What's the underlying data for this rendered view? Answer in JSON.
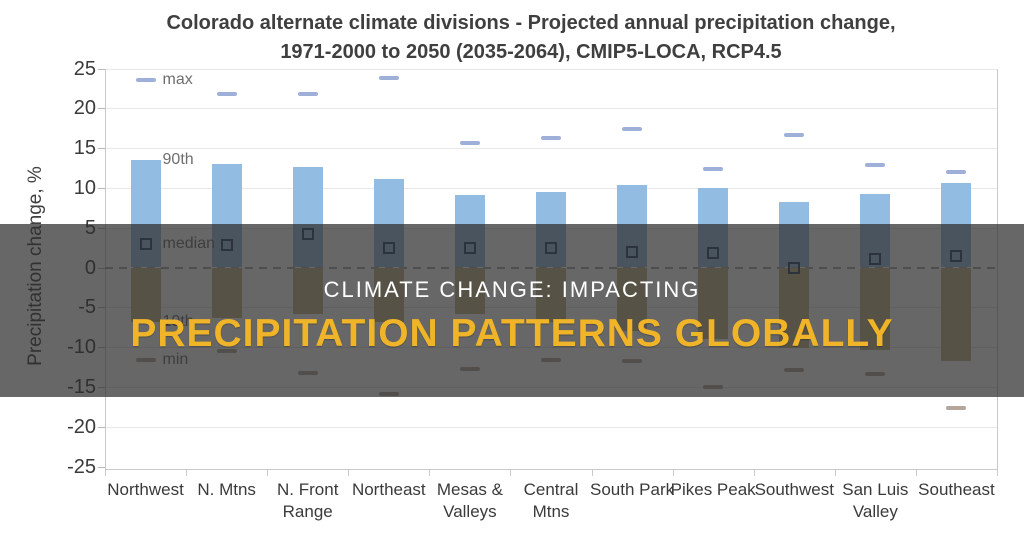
{
  "page": {
    "kind": "blog hero image: Excel chart screenshot with headline banner overlay"
  },
  "overlay_banner": {
    "line1": "CLIMATE CHANGE: IMPACTING",
    "line2": "PRECIPITATION PATTERNS GLOBALLY",
    "band_color": "#2d2d2d",
    "band_opacity": 0.72,
    "line1_color": "#ffffff",
    "line2_color": "#f0b429"
  },
  "chart_data": {
    "type": "bar",
    "title": "Colorado alternate climate divisions - Projected annual precipitation change, 1971-2000 to 2050 (2035-2064), CMIP5-LOCA, RCP4.5",
    "title_line1": "Colorado alternate climate divisions - Projected annual precipitation change,",
    "title_line2": "1971-2000 to 2050 (2035-2064), CMIP5-LOCA, RCP4.5",
    "xlabel": "",
    "ylabel": "Precipitation change, %",
    "ylim": [
      -25,
      25
    ],
    "ytick_interval": 5,
    "yticks": [
      25,
      20,
      15,
      10,
      5,
      0,
      -5,
      -10,
      -15,
      -20,
      -25
    ],
    "grid": true,
    "legend_position": "none (series labels annotated beside first category)",
    "categories": [
      "Northwest",
      "N. Mtns",
      "N. Front Range",
      "Northeast",
      "Mesas & Valleys",
      "Central Mtns",
      "South Park",
      "Pikes Peak",
      "Southwest",
      "San Luis Valley",
      "Southeast"
    ],
    "categories_display": [
      [
        "Northwest"
      ],
      [
        "N. Mtns"
      ],
      [
        "N. Front",
        "Range"
      ],
      [
        "Northeast"
      ],
      [
        "Mesas &",
        "Valleys"
      ],
      [
        "Central",
        "Mtns"
      ],
      [
        "South Park"
      ],
      [
        "Pikes Peak"
      ],
      [
        "Southwest"
      ],
      [
        "San Luis",
        "Valley"
      ],
      [
        "Southeast"
      ]
    ],
    "series": [
      {
        "name": "max",
        "marker": "dash",
        "values": [
          23.6,
          21.8,
          21.8,
          23.8,
          15.6,
          16.3,
          17.4,
          12.4,
          16.6,
          12.9,
          12.0
        ]
      },
      {
        "name": "90th",
        "marker": "bar-top",
        "values": [
          13.5,
          13.0,
          12.6,
          11.1,
          9.1,
          9.5,
          10.4,
          10.0,
          8.2,
          9.2,
          10.6
        ]
      },
      {
        "name": "median",
        "marker": "open-square",
        "values": [
          3.0,
          2.8,
          4.2,
          2.5,
          2.5,
          2.5,
          1.9,
          1.8,
          -0.1,
          1.1,
          1.4
        ]
      },
      {
        "name": "10th",
        "marker": "bar-bottom",
        "values": [
          -6.9,
          -6.4,
          -5.8,
          -6.8,
          -5.9,
          -6.8,
          -8.0,
          -9.0,
          -10.1,
          -10.4,
          -11.8
        ]
      },
      {
        "name": "min",
        "marker": "dash",
        "values": [
          -11.6,
          -10.5,
          -13.3,
          -15.9,
          -12.8,
          -11.6,
          -11.8,
          -15.0,
          -12.9,
          -13.4,
          -17.6
        ]
      }
    ],
    "annotations": [
      {
        "series": "max",
        "label": "max"
      },
      {
        "series": "90th",
        "label": "90th"
      },
      {
        "series": "median",
        "label": "median"
      },
      {
        "series": "10th",
        "label": "10th"
      },
      {
        "series": "min",
        "label": "min"
      }
    ],
    "colors": {
      "bar_90th": "#93bce3",
      "bar_10th": "#c5b48a",
      "marker_max": "#9fb0d8",
      "marker_min": "#b3a79e",
      "marker_median_border": "#2e4766",
      "zero_line": "#a6a6a6",
      "gridline": "#e8e8e8",
      "axis_line": "#c9c9c9",
      "title_text": "#3f3f3f",
      "tick_text": "#3a3a3a",
      "annotation_text": "#6e6e6e"
    }
  }
}
